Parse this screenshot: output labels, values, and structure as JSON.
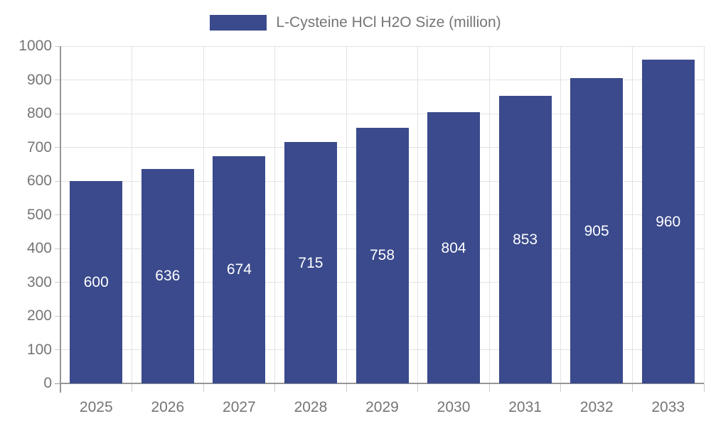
{
  "chart_data": {
    "type": "bar",
    "title": "L-Cysteine HCl H2O Size (million)",
    "legend": [
      "L-Cysteine HCl H2O Size (million)"
    ],
    "legend_position": "top-center",
    "categories": [
      "2025",
      "2026",
      "2027",
      "2028",
      "2029",
      "2030",
      "2031",
      "2032",
      "2033"
    ],
    "values": [
      600,
      636,
      674,
      715,
      758,
      804,
      853,
      905,
      960
    ],
    "xlabel": "",
    "ylabel": "",
    "ylim": [
      0,
      1000
    ],
    "yticks": [
      0,
      100,
      200,
      300,
      400,
      500,
      600,
      700,
      800,
      900,
      1000
    ],
    "grid": true,
    "value_labels": true,
    "colors": {
      "bar": "#3A4A8C",
      "value_label": "#FFFFFF",
      "axis_text": "#757575",
      "grid_line": "#E3E3E3",
      "tick_line": "#CCCCCC",
      "axis_line": "#969696",
      "background": "#FFFFFF"
    }
  }
}
